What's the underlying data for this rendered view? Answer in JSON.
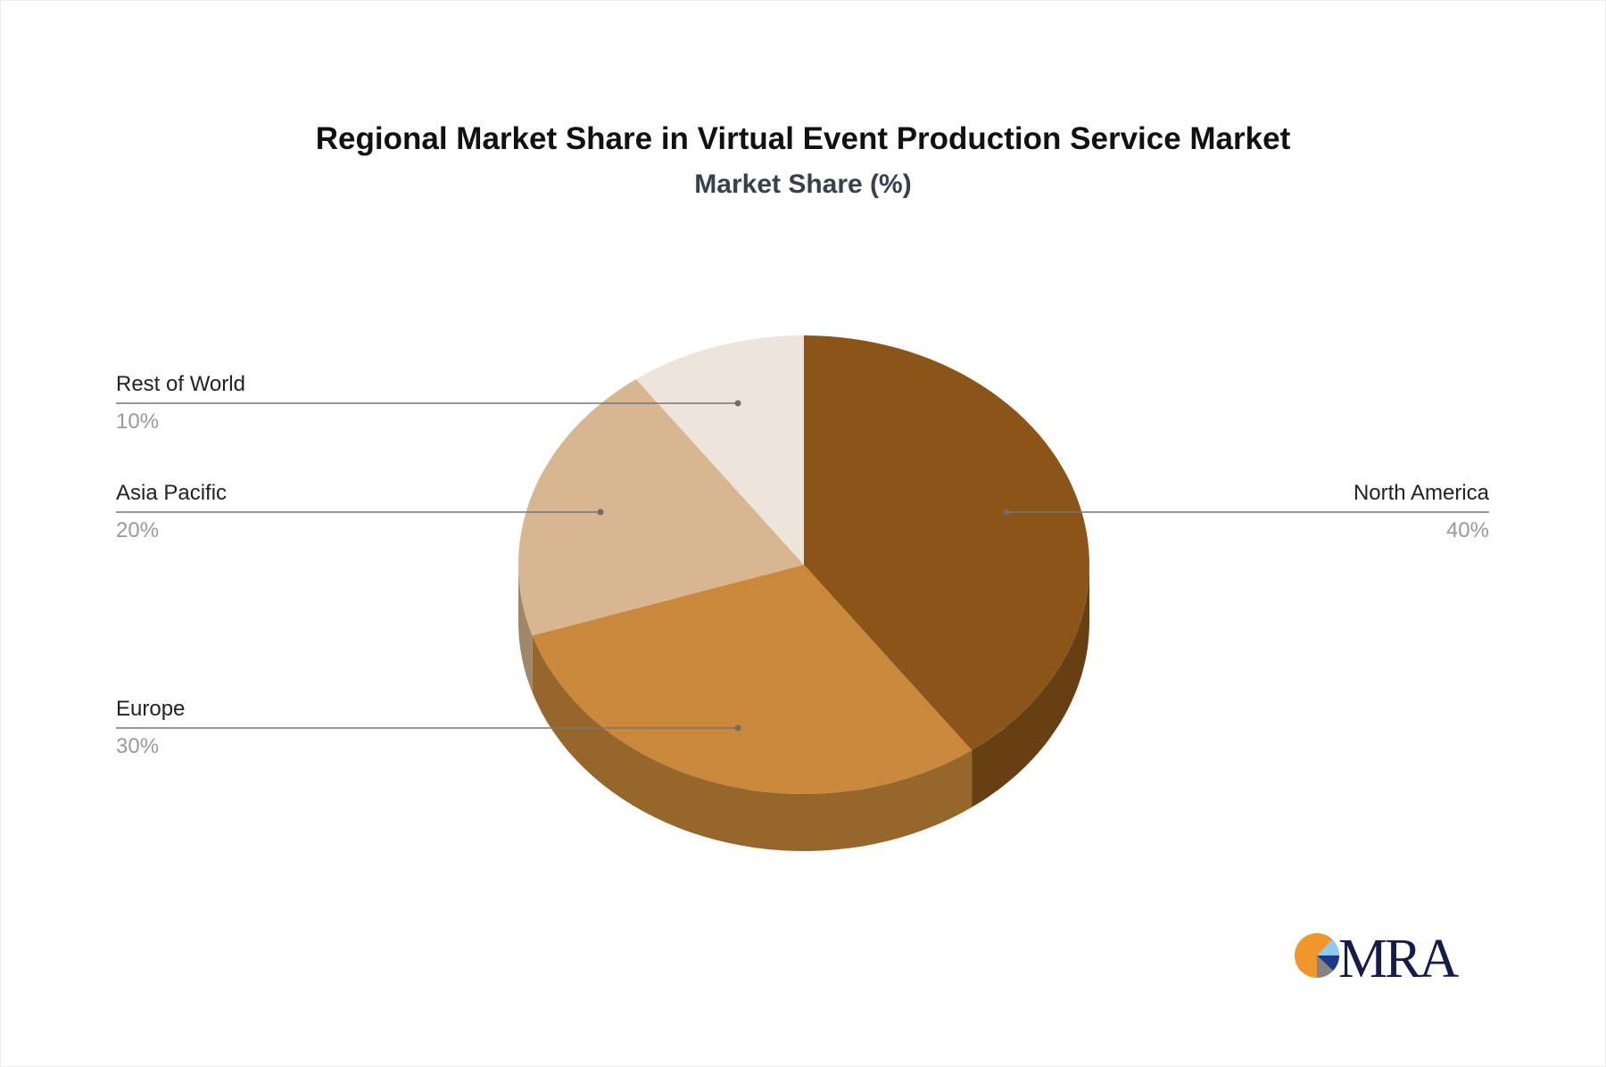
{
  "chart_data": {
    "type": "pie",
    "title": "Regional Market Share in Virtual Event Production Service Market",
    "subtitle": "Market Share (%)",
    "slices": [
      {
        "label": "North America",
        "value": 40,
        "value_label": "40%",
        "color": "#8b5519",
        "side_color": "#673f12"
      },
      {
        "label": "Europe",
        "value": 30,
        "value_label": "30%",
        "color": "#c9883b",
        "side_color": "#96662b"
      },
      {
        "label": "Asia Pacific",
        "value": 20,
        "value_label": "20%",
        "color": "#d7b691",
        "side_color": "#a0876a"
      },
      {
        "label": "Rest of World",
        "value": 10,
        "value_label": "10%",
        "color": "#ede4dc",
        "side_color": "#b5aaa0"
      }
    ],
    "style": "3d"
  },
  "logo": {
    "text": "MRA",
    "colors": [
      "#f0962a",
      "#8ecbf0",
      "#1b3a84",
      "#8a8480"
    ],
    "text_color": "#161c4a"
  }
}
